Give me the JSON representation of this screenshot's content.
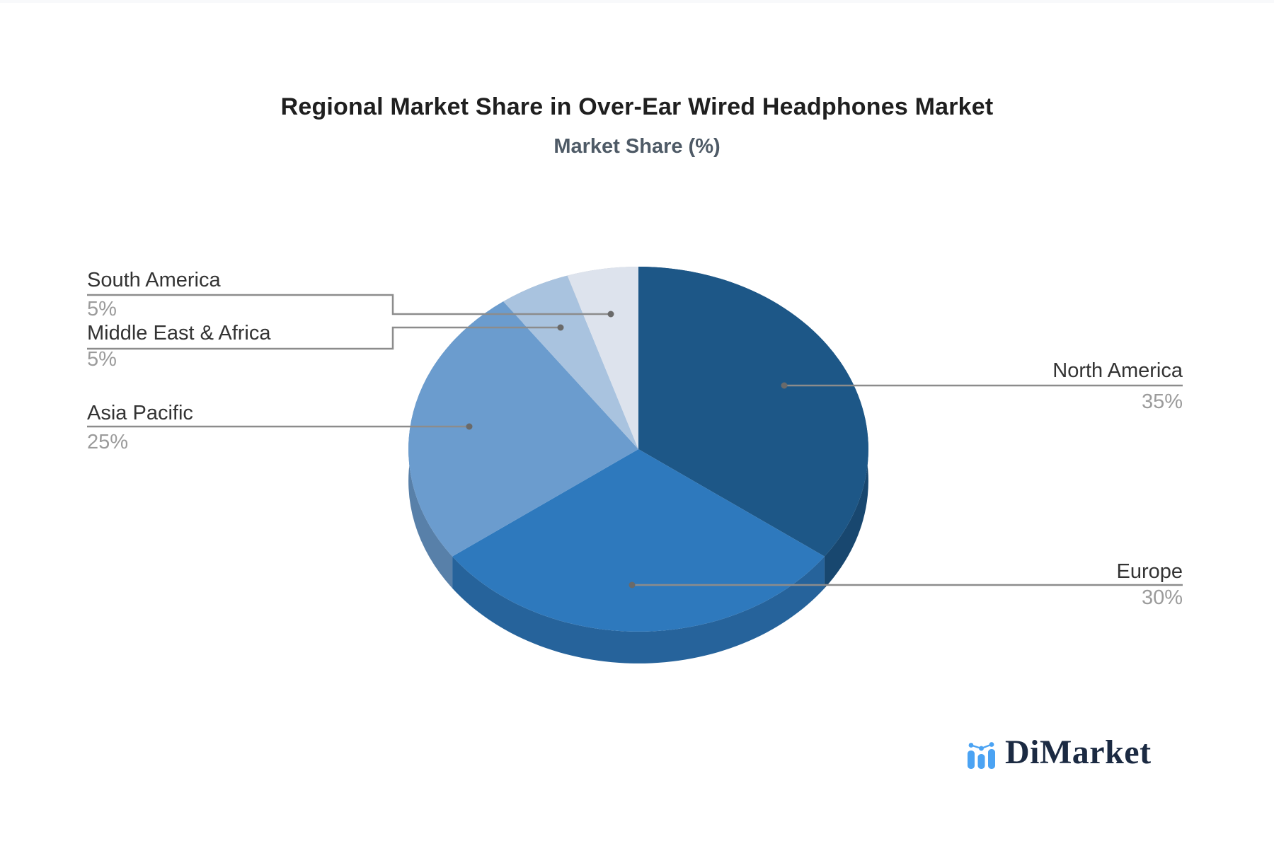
{
  "chart_data": {
    "type": "pie",
    "title": "Regional Market Share in Over-Ear Wired Headphones Market",
    "subtitle": "Market Share (%)",
    "legend_position": "none",
    "style_3d": true,
    "start_angle_deg": 90,
    "direction": "clockwise",
    "label_layout": "outside leader lines, name above line, percent below",
    "items": [
      {
        "name": "North America",
        "value": 35,
        "pct": "35%",
        "color": "#1D5787",
        "side": "right"
      },
      {
        "name": "Europe",
        "value": 30,
        "pct": "30%",
        "color": "#2E79BD",
        "side": "right"
      },
      {
        "name": "Asia Pacific",
        "value": 25,
        "pct": "25%",
        "color": "#6B9CCE",
        "side": "left"
      },
      {
        "name": "Middle East & Africa",
        "value": 5,
        "pct": "5%",
        "color": "#A9C3DF",
        "side": "left"
      },
      {
        "name": "South America",
        "value": 5,
        "pct": "5%",
        "color": "#DDE3ED",
        "side": "left"
      }
    ]
  },
  "branding": {
    "logo_text": "DiMarket",
    "icon_color": "#4BA3F3",
    "text_color": "#1B2A42"
  },
  "colors": {
    "title": "#1F1F1F",
    "subtitle": "#4E5A66",
    "label_name": "#333333",
    "label_pct": "#9B9B9B",
    "leader_line": "#8C8C8C",
    "leader_dot": "#6A6A6A",
    "background": "#FFFFFF"
  }
}
